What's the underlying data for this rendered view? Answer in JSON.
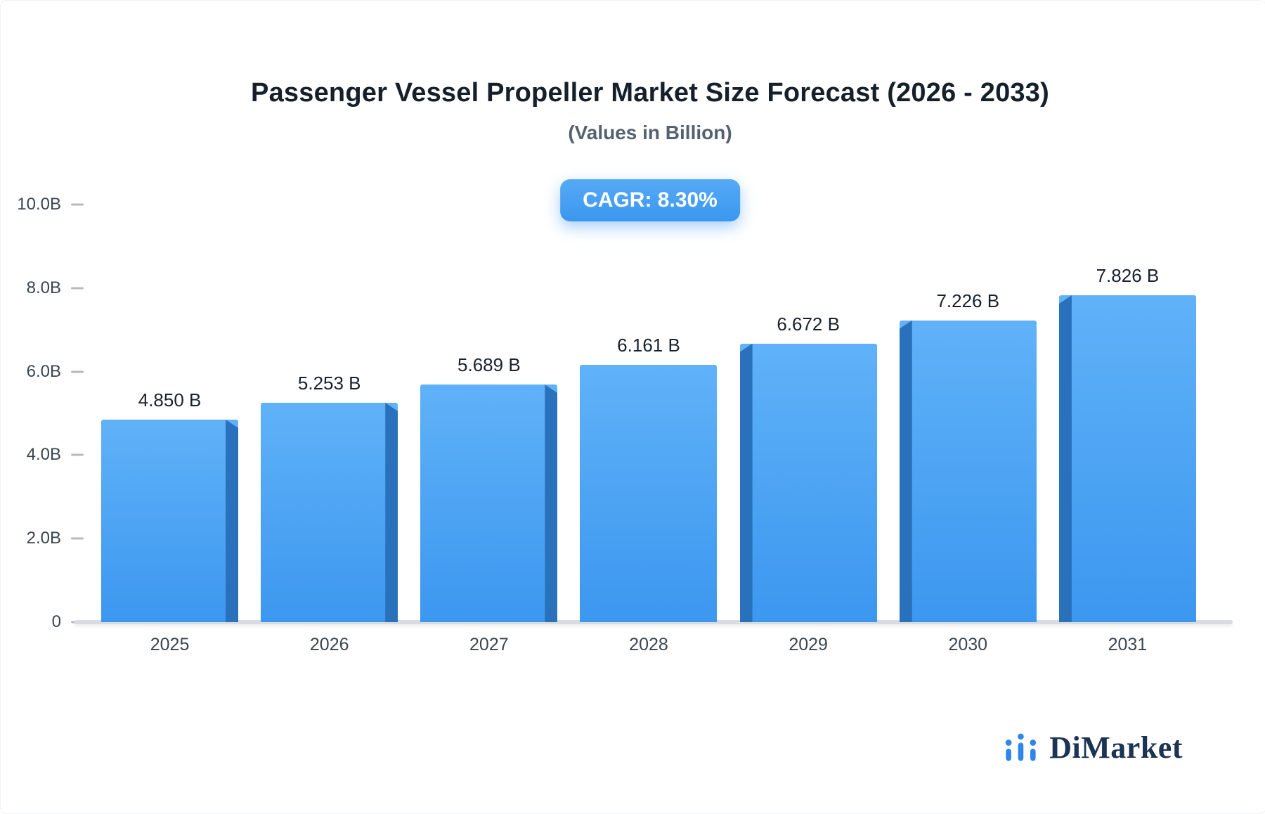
{
  "title": "Passenger Vessel Propeller Market Size Forecast (2026 - 2033)",
  "subtitle": "(Values in Billion)",
  "cagr_badge": "CAGR: 8.30%",
  "logo": {
    "text": "DiMarket"
  },
  "chart_data": {
    "type": "bar",
    "categories": [
      "2025",
      "2026",
      "2027",
      "2028",
      "2029",
      "2030",
      "2031"
    ],
    "values": [
      4.85,
      5.253,
      5.689,
      6.161,
      6.672,
      7.226,
      7.826
    ],
    "value_labels": [
      "4.850 B",
      "5.253 B",
      "5.689 B",
      "6.161 B",
      "6.672 B",
      "7.226 B",
      "7.826 B"
    ],
    "title": "Passenger Vessel Propeller Market Size Forecast (2026 - 2033)",
    "subtitle": "(Values in Billion)",
    "xlabel": "",
    "ylabel": "",
    "ylim": [
      0,
      10
    ],
    "yticks": [
      {
        "value": 10,
        "label": "10.0B"
      },
      {
        "value": 8,
        "label": "8.0B"
      },
      {
        "value": 6,
        "label": "6.0B"
      },
      {
        "value": 4,
        "label": "4.0B"
      },
      {
        "value": 2,
        "label": "2.0B"
      },
      {
        "value": 0,
        "label": "0"
      }
    ],
    "grid": false,
    "legend": false,
    "annotations": [
      "CAGR: 8.30%"
    ],
    "colors": {
      "bar_top": "#60b2f8",
      "bar_bottom": "#3c97ef",
      "bar_side": "#2a71bc",
      "badge": "#3b97ef",
      "logo_icon": "#2e86e8",
      "logo_text": "#1c3354"
    }
  }
}
